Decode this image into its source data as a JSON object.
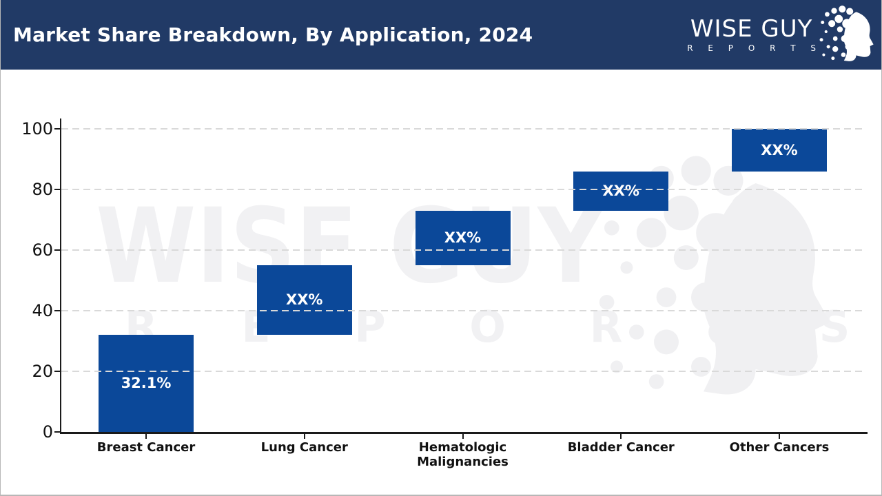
{
  "header": {
    "title": "Market Share Breakdown, By Application, 2024",
    "logo": {
      "name": "WISE GUY",
      "sub": "R E P O R T S",
      "icon": "head-profile-dots"
    }
  },
  "watermark": {
    "name": "WISE GUY",
    "sub": "R E P O R T S",
    "icon": "head-profile-dots"
  },
  "chart_data": {
    "type": "bar",
    "subtype": "floating-waterfall",
    "title": "Market Share Breakdown, By Application, 2024",
    "categories": [
      "Breast Cancer",
      "Lung Cancer",
      "Hematologic Malignancies",
      "Bladder Cancer",
      "Other Cancers"
    ],
    "bars": [
      {
        "category": "Breast Cancer",
        "start": 0,
        "end": 32.1,
        "label": "32.1%"
      },
      {
        "category": "Lung Cancer",
        "start": 32.1,
        "end": 55,
        "label": "XX%"
      },
      {
        "category": "Hematologic Malignancies",
        "start": 55,
        "end": 73,
        "label": "XX%"
      },
      {
        "category": "Bladder Cancer",
        "start": 73,
        "end": 86,
        "label": "XX%"
      },
      {
        "category": "Other Cancers",
        "start": 86,
        "end": 100,
        "label": "XX%"
      }
    ],
    "xlabel": "",
    "ylabel": "",
    "ylim": [
      0,
      100
    ],
    "yticks": [
      0,
      20,
      40,
      60,
      80,
      100
    ],
    "grid": "horizontal-dashed",
    "legend": "none",
    "colors": {
      "bar": "#0b4899",
      "bar_label": "#ffffff",
      "grid": "#d9d9d9",
      "axis": "#1a1a1a",
      "header_bg": "#213a66",
      "header_text": "#ffffff",
      "watermark": "#f1f1f3"
    }
  }
}
